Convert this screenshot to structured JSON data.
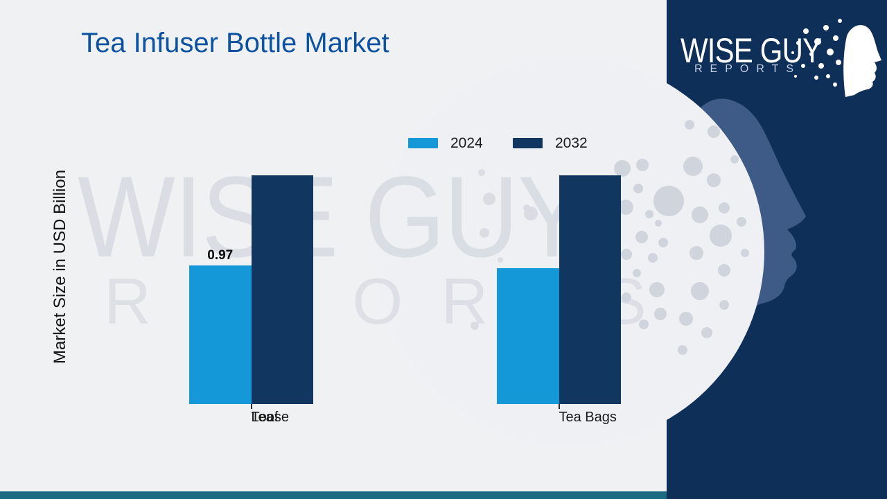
{
  "page": {
    "background_color": "#f0f1f3",
    "bottom_bar_color": "#1d6a83",
    "panel_color": "#0e2f58"
  },
  "header": {
    "title": "Tea Infuser Bottle Market",
    "title_color": "#0d52a1"
  },
  "logo": {
    "line1": "WISE GUY",
    "line2": "REPORTS"
  },
  "watermark": {
    "line1": "WISE GUY",
    "line2": "REPORTS"
  },
  "chart_data": {
    "type": "bar",
    "title": "Tea Infuser Bottle Market",
    "xlabel": "",
    "ylabel": "Market Size in USD Billion",
    "categories": [
      "Loose Leaf Tea",
      "Tea Bags"
    ],
    "category_label_lines": [
      [
        "Loose",
        "Leaf",
        "Tea"
      ],
      [
        "Tea Bags"
      ]
    ],
    "series": [
      {
        "name": "2024",
        "color": "#1598d8",
        "values": [
          0.97,
          0.95
        ]
      },
      {
        "name": "2032",
        "color": "#11365f",
        "values": [
          1.6,
          1.6
        ]
      }
    ],
    "value_labels": [
      {
        "category_index": 0,
        "series_index": 0,
        "text": "0.97"
      }
    ],
    "ylim": [
      0,
      1.75
    ],
    "grid": false,
    "axis_lines": false,
    "legend_position": "top",
    "note": "Only the 0.97 value is labeled on the chart; other bar values are estimated from bar heights."
  }
}
